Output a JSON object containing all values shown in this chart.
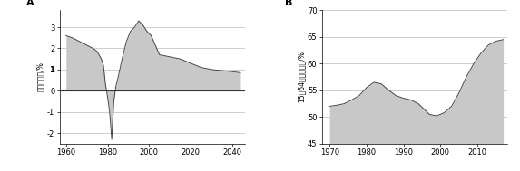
{
  "chartA": {
    "title": "A",
    "ylabel": "人口增长率/%",
    "xlim": [
      1957,
      2046
    ],
    "ylim": [
      -2.5,
      3.8
    ],
    "yticks": [
      -2,
      -1,
      0,
      1,
      2,
      3
    ],
    "xticks": [
      1960,
      1980,
      2000,
      2020,
      2040
    ],
    "fill_color": "#c8c8c8",
    "line_color": "#444444",
    "x": [
      1960,
      1963,
      1966,
      1969,
      1971,
      1973,
      1975,
      1977,
      1978,
      1979,
      1980,
      1981,
      1982,
      1983,
      1984,
      1985,
      1987,
      1989,
      1991,
      1993,
      1995,
      1997,
      1999,
      2001,
      2005,
      2010,
      2015,
      2020,
      2025,
      2030,
      2035,
      2040,
      2044
    ],
    "y": [
      2.6,
      2.5,
      2.35,
      2.2,
      2.1,
      2.0,
      1.85,
      1.5,
      1.2,
      0.3,
      -0.3,
      -1.0,
      -2.3,
      -0.5,
      0.2,
      0.6,
      1.5,
      2.3,
      2.8,
      3.0,
      3.3,
      3.1,
      2.8,
      2.6,
      1.7,
      1.6,
      1.5,
      1.3,
      1.1,
      1.0,
      0.95,
      0.9,
      0.85
    ]
  },
  "chartB": {
    "title": "B",
    "ylabel": "15～64岁人口比例/%",
    "xlim": [
      1968,
      2018
    ],
    "ylim": [
      45,
      70
    ],
    "yticks": [
      45,
      50,
      55,
      60,
      65,
      70
    ],
    "xticks": [
      1970,
      1980,
      1990,
      2000,
      2010
    ],
    "fill_color": "#c8c8c8",
    "line_color": "#444444",
    "x": [
      1970,
      1972,
      1974,
      1976,
      1978,
      1980,
      1982,
      1984,
      1986,
      1988,
      1990,
      1992,
      1994,
      1996,
      1997,
      1999,
      2001,
      2003,
      2005,
      2007,
      2009,
      2011,
      2013,
      2015,
      2017
    ],
    "y": [
      52.0,
      52.2,
      52.5,
      53.2,
      54.0,
      55.5,
      56.5,
      56.2,
      55.0,
      54.0,
      53.5,
      53.2,
      52.5,
      51.2,
      50.5,
      50.2,
      50.8,
      52.0,
      54.5,
      57.5,
      60.0,
      62.0,
      63.5,
      64.2,
      64.5
    ]
  },
  "background_color": "#ffffff",
  "grid_color": "#bbbbbb"
}
